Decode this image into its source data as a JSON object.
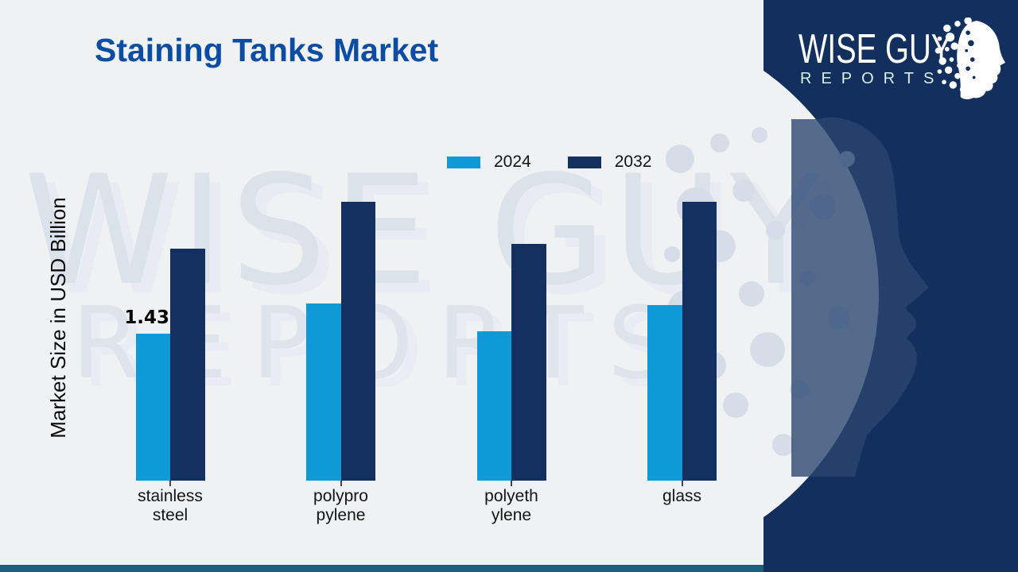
{
  "page": {
    "background": "#F0F1F2"
  },
  "header": {
    "title": "Staining Tanks Market",
    "title_color": "#0B4DA2"
  },
  "branding": {
    "logo_line1": "WISE GUY",
    "logo_line2": "REPORTS",
    "panel_color": "#132F5E",
    "strip_color": "#1A5F80"
  },
  "watermark": {
    "line1": "WISE GUY",
    "line2": "REPORTS"
  },
  "chart_data": {
    "type": "bar",
    "title": "Staining Tanks Market",
    "xlabel": "",
    "ylabel": "Market Size in USD Billion",
    "ylim": [
      0,
      3
    ],
    "grid": false,
    "legend_position": "top",
    "categories": [
      "stainless steel",
      "polypropylene",
      "polyethylene",
      "glass"
    ],
    "categories_display": [
      [
        "stainless",
        "steel"
      ],
      [
        "polypro",
        "pylene"
      ],
      [
        "polyeth",
        "ylene"
      ],
      [
        "glass"
      ]
    ],
    "series": [
      {
        "name": "2024",
        "color": "#0F9AD7",
        "values": [
          1.43,
          1.72,
          1.45,
          1.71
        ]
      },
      {
        "name": "2032",
        "color": "#133060",
        "values": [
          2.26,
          2.71,
          2.3,
          2.71
        ]
      }
    ],
    "annotations": [
      {
        "series_index": 0,
        "category_index": 0,
        "text": "1.43"
      }
    ]
  }
}
